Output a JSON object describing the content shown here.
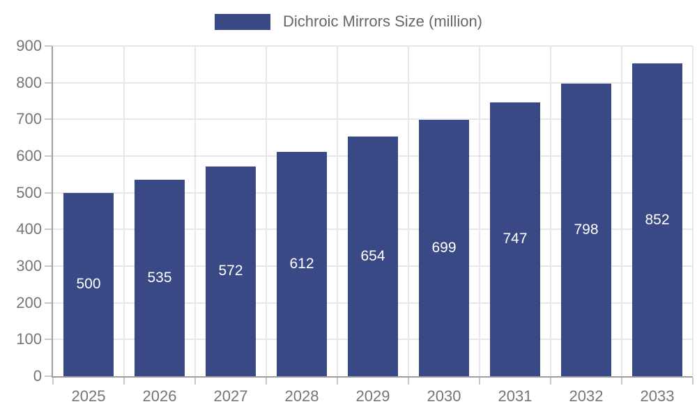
{
  "chart_data": {
    "type": "bar",
    "legend_label": "Dichroic Mirrors Size (million)",
    "categories": [
      "2025",
      "2026",
      "2027",
      "2028",
      "2029",
      "2030",
      "2031",
      "2032",
      "2033"
    ],
    "values": [
      500,
      535,
      572,
      612,
      654,
      699,
      747,
      798,
      852
    ],
    "title": "",
    "xlabel": "",
    "ylabel": "",
    "ylim": [
      0,
      900
    ],
    "ytick_step": 100,
    "grid": true,
    "legend_position": "top",
    "colors": {
      "bar": "#394986",
      "value_label": "#ffffff",
      "axis_text": "#757575",
      "legend_text": "#666666",
      "gridline": "#e7e7ea",
      "axis_line": "#9e9e9e",
      "tick": "#c9c9c9",
      "background": "#ffffff"
    }
  }
}
